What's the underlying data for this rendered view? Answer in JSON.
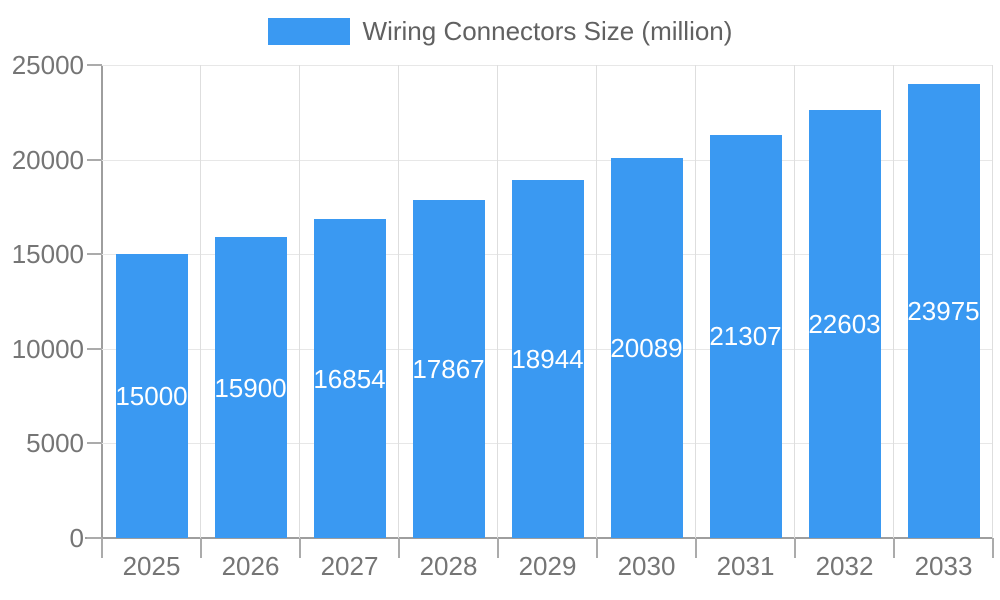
{
  "chart_data": {
    "type": "bar",
    "title": "Wiring Connectors Size (million)",
    "xlabel": "",
    "ylabel": "",
    "categories": [
      "2025",
      "2026",
      "2027",
      "2028",
      "2029",
      "2030",
      "2031",
      "2032",
      "2033"
    ],
    "series": [
      {
        "name": "Wiring Connectors Size (million)",
        "values": [
          15000,
          15900,
          16854,
          17867,
          18944,
          20089,
          21307,
          22603,
          23975
        ]
      }
    ],
    "ylim": [
      0,
      25000
    ],
    "ytick_step": 5000,
    "ytick_labels": [
      "0",
      "5000",
      "10000",
      "15000",
      "20000",
      "25000"
    ],
    "grid": "horizontal and vertical gridlines on",
    "legend_position": "top-center",
    "value_labels": "white numbers centered inside bars",
    "colors": {
      "bar": "#3a99f2",
      "value_label": "#ffffff",
      "tick_text": "#757575",
      "title_text": "#616161",
      "axis": "#9e9e9e",
      "tick": "#ababab",
      "gridline_h": "#e7e7e7",
      "gridline_v": "#dedede",
      "background": "#ffffff"
    }
  }
}
